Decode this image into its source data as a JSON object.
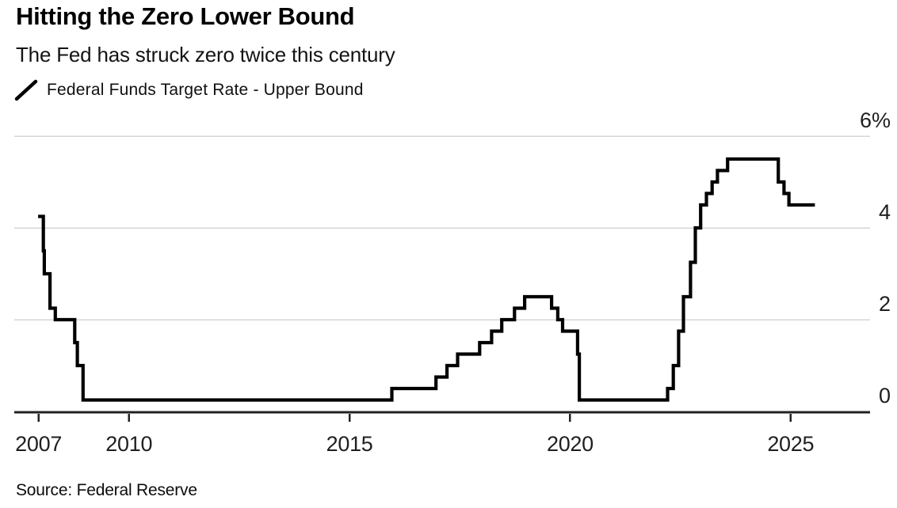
{
  "header": {
    "title": "Hitting the Zero Lower Bound",
    "subtitle": "The Fed has struck zero twice this century"
  },
  "legend": {
    "items": [
      {
        "label": "Federal Funds Target Rate - Upper Bound",
        "color": "#000000",
        "icon": "diagonal-line-swatch"
      }
    ]
  },
  "footer": {
    "source": "Source: Federal Reserve"
  },
  "colors": {
    "background": "#ffffff",
    "title_text": "#000000",
    "axis_text": "#1f1f1f",
    "grid_line": "#d6d6d6",
    "axis_line": "#222222",
    "series_line": "#000000"
  },
  "chart_data": {
    "type": "line",
    "step": "after",
    "title": "Hitting the Zero Lower Bound",
    "subtitle": "The Fed has struck zero twice this century",
    "unit": "percent",
    "grid": "horizontal-only",
    "legend_position": "top-left",
    "x_domain": [
      2007.4,
      2026.8
    ],
    "y_domain": [
      0,
      6
    ],
    "x_ticks": [
      {
        "t": 2007.95,
        "label": "2007"
      },
      {
        "t": 2010,
        "label": "2010"
      },
      {
        "t": 2015,
        "label": "2015"
      },
      {
        "t": 2020,
        "label": "2020"
      },
      {
        "t": 2025,
        "label": "2025"
      }
    ],
    "y_ticks": [
      {
        "v": 0,
        "label": "0"
      },
      {
        "v": 2,
        "label": "2"
      },
      {
        "v": 4,
        "label": "4"
      },
      {
        "v": 6,
        "label": "6%"
      }
    ],
    "series": [
      {
        "name": "Federal Funds Target Rate - Upper Bound",
        "color": "#000000",
        "points": [
          [
            2007.94,
            4.25
          ],
          [
            2008.06,
            3.5
          ],
          [
            2008.08,
            3.0
          ],
          [
            2008.21,
            2.25
          ],
          [
            2008.33,
            2.0
          ],
          [
            2008.77,
            1.5
          ],
          [
            2008.83,
            1.0
          ],
          [
            2008.96,
            0.25
          ],
          [
            2015.96,
            0.5
          ],
          [
            2016.96,
            0.75
          ],
          [
            2017.21,
            1.0
          ],
          [
            2017.45,
            1.25
          ],
          [
            2017.95,
            1.5
          ],
          [
            2018.22,
            1.75
          ],
          [
            2018.45,
            2.0
          ],
          [
            2018.74,
            2.25
          ],
          [
            2018.97,
            2.5
          ],
          [
            2019.58,
            2.25
          ],
          [
            2019.72,
            2.0
          ],
          [
            2019.83,
            1.75
          ],
          [
            2020.17,
            1.25
          ],
          [
            2020.21,
            0.25
          ],
          [
            2022.21,
            0.5
          ],
          [
            2022.34,
            1.0
          ],
          [
            2022.46,
            1.75
          ],
          [
            2022.57,
            2.5
          ],
          [
            2022.73,
            3.25
          ],
          [
            2022.84,
            4.0
          ],
          [
            2022.96,
            4.5
          ],
          [
            2023.09,
            4.75
          ],
          [
            2023.22,
            5.0
          ],
          [
            2023.34,
            5.25
          ],
          [
            2023.57,
            5.5
          ],
          [
            2024.72,
            5.0
          ],
          [
            2024.85,
            4.75
          ],
          [
            2024.96,
            4.5
          ],
          [
            2025.55,
            4.5
          ]
        ]
      }
    ]
  }
}
